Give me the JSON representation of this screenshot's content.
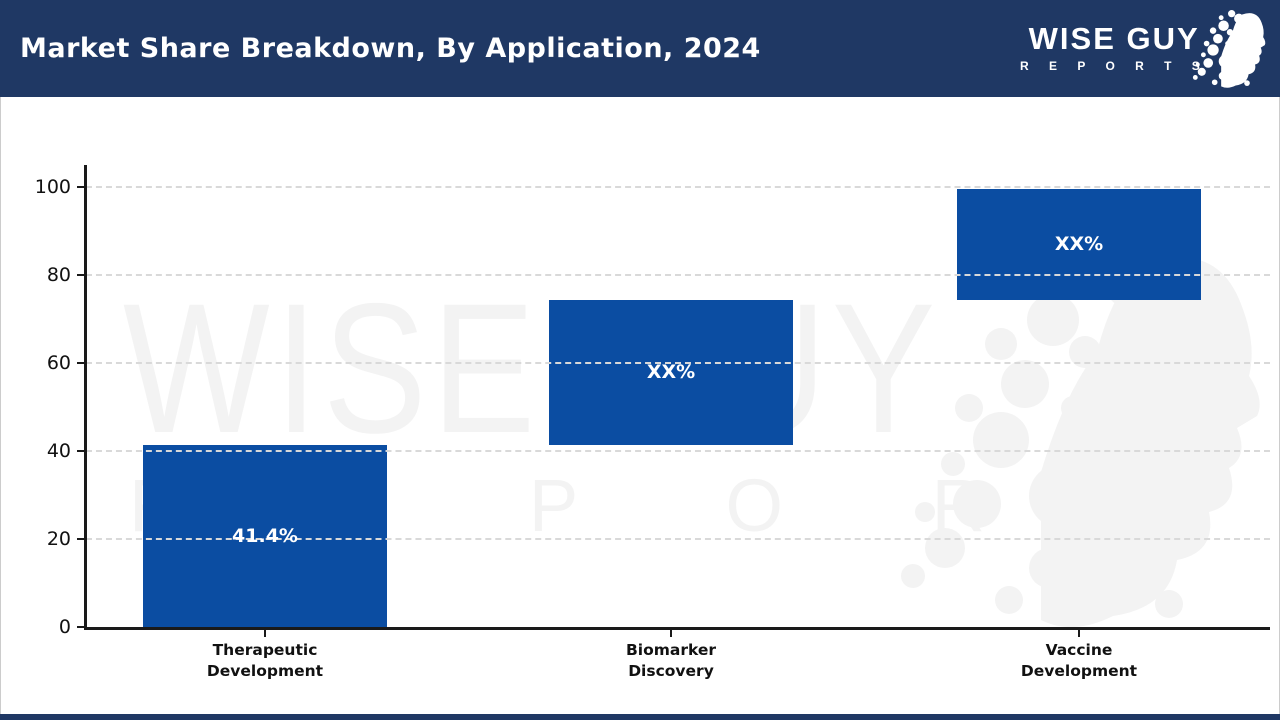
{
  "header": {
    "title": "Market Share Breakdown, By Application, 2024",
    "bg_color": "#1F3864",
    "logo_line1": "WISE GUY",
    "logo_line2": "R E P O R T S"
  },
  "watermark": {
    "line1": "WISE GUY",
    "line2": "R E P O R T S"
  },
  "footer": {
    "bar_color": "#1F3864"
  },
  "chart_data": {
    "type": "bar",
    "subtype": "waterfall",
    "title": "Market Share Breakdown, By Application, 2024",
    "categories": [
      "Therapeutic Development",
      "Biomarker Discovery",
      "Vaccine Development"
    ],
    "category_lines": [
      [
        "Therapeutic",
        "Development"
      ],
      [
        "Biomarker",
        "Discovery"
      ],
      [
        "Vaccine",
        "Development"
      ]
    ],
    "segments": [
      {
        "category": "Therapeutic Development",
        "start": 0,
        "end": 41.4,
        "label": "41.4%"
      },
      {
        "category": "Biomarker Discovery",
        "start": 41.4,
        "end": 74.4,
        "label": "XX%"
      },
      {
        "category": "Vaccine Development",
        "start": 74.4,
        "end": 99.5,
        "label": "XX%"
      }
    ],
    "yticks": [
      0,
      20,
      40,
      60,
      80,
      100
    ],
    "ylim": [
      0,
      105
    ],
    "grid": true,
    "grid_style": "dashed",
    "grid_color": "#D9D9D9",
    "axis_color": "#1A1A1A",
    "bar_color": "#0B4DA2",
    "bar_label_color": "#FFFFFF",
    "legend": "none"
  }
}
